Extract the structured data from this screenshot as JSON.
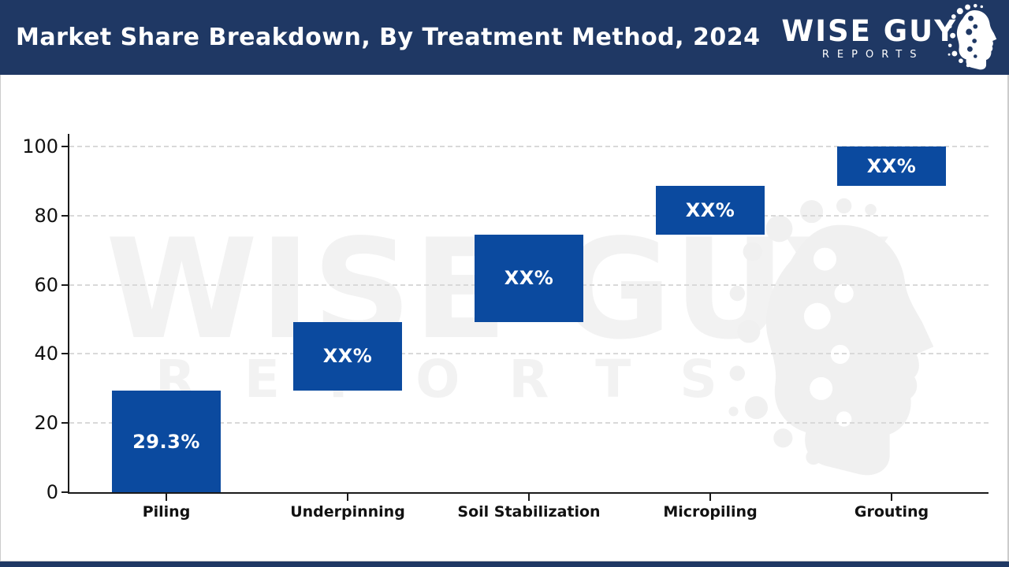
{
  "header": {
    "title": "Market Share Breakdown, By Treatment Method, 2024",
    "logo": {
      "line1": "WISE GUY",
      "line2": "REPORTS"
    }
  },
  "watermark": {
    "line1": "WISE GUY",
    "line2": "REPORTS"
  },
  "colors": {
    "header_bg": "#1f3864",
    "bar": "#0b4a9f",
    "grid": "#d9d9d9",
    "axis": "#1a1a1a",
    "bar_label": "#ffffff",
    "watermark": "#f2f2f2"
  },
  "chart_data": {
    "type": "bar",
    "subtype": "waterfall",
    "title": "Market Share Breakdown, By Treatment Method, 2024",
    "categories": [
      "Piling",
      "Underpinning",
      "Soil Stabilization",
      "Micropiling",
      "Grouting"
    ],
    "segments": [
      {
        "category": "Piling",
        "start": 0,
        "end": 29.3,
        "label": "29.3%"
      },
      {
        "category": "Underpinning",
        "start": 29.3,
        "end": 49.3,
        "label": "XX%"
      },
      {
        "category": "Soil Stabilization",
        "start": 49.3,
        "end": 74.5,
        "label": "XX%"
      },
      {
        "category": "Micropiling",
        "start": 74.5,
        "end": 88.6,
        "label": "XX%"
      },
      {
        "category": "Grouting",
        "start": 88.6,
        "end": 100,
        "label": "XX%"
      }
    ],
    "xlabel": "",
    "ylabel": "",
    "yticks": [
      0,
      20,
      40,
      60,
      80,
      100
    ],
    "ylim": [
      0,
      100
    ],
    "grid": "horizontal-dashed",
    "legend": "none",
    "bar_value_labels": "inside-center-white-bold"
  }
}
